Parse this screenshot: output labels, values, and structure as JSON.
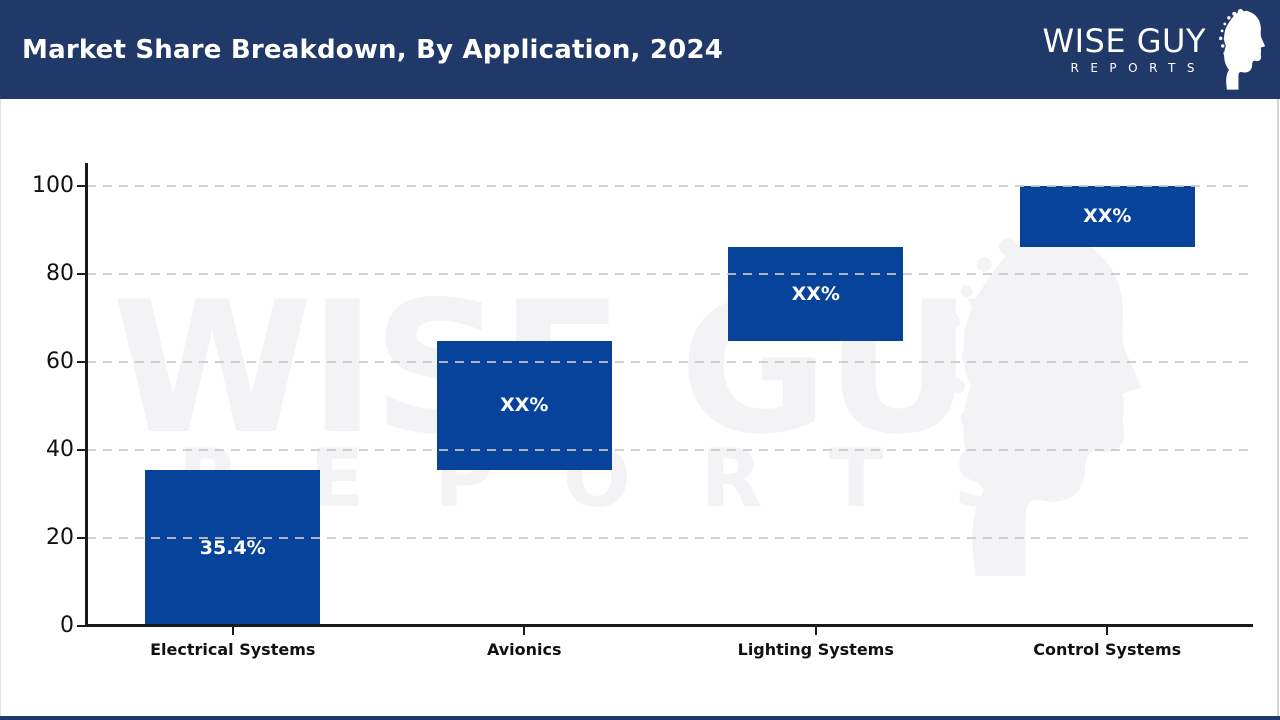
{
  "header": {
    "title": "Market Share Breakdown, By Application, 2024",
    "logo": {
      "brand_line1": "WISE GUY",
      "brand_line2": "REPORTS"
    }
  },
  "watermark": {
    "line1": "WISE GUY",
    "line2": "REPORTS"
  },
  "chart_data": {
    "type": "bar",
    "subtype": "floating-waterfall",
    "title": "Market Share Breakdown, By Application, 2024",
    "categories": [
      "Electrical Systems",
      "Avionics",
      "Lighting Systems",
      "Control Systems"
    ],
    "series": [
      {
        "name": "Market share by application (%)",
        "segments": [
          {
            "category": "Electrical Systems",
            "start": 0,
            "end": 35.4,
            "label": "35.4%"
          },
          {
            "category": "Avionics",
            "start": 35.4,
            "end": 64.8,
            "label": "XX%"
          },
          {
            "category": "Lighting Systems",
            "start": 64.8,
            "end": 86.0,
            "label": "XX%"
          },
          {
            "category": "Control Systems",
            "start": 86.0,
            "end": 100.0,
            "label": "XX%"
          }
        ]
      }
    ],
    "xlabel": "",
    "ylabel": "",
    "ylim": [
      0,
      100
    ],
    "yticks": [
      0,
      20,
      40,
      60,
      80,
      100
    ],
    "grid": "horizontal-dashed",
    "legend": null,
    "bar_color": "#07429b",
    "bar_label_color": "#ffffff"
  },
  "colors": {
    "header_bg": "#213968",
    "footer_bg": "#213968",
    "page_bg": "#ffffff",
    "watermark": "#f3f3f5",
    "axis": "#1a1a1a",
    "grid": "#c9c9c9",
    "text": "#111111"
  }
}
